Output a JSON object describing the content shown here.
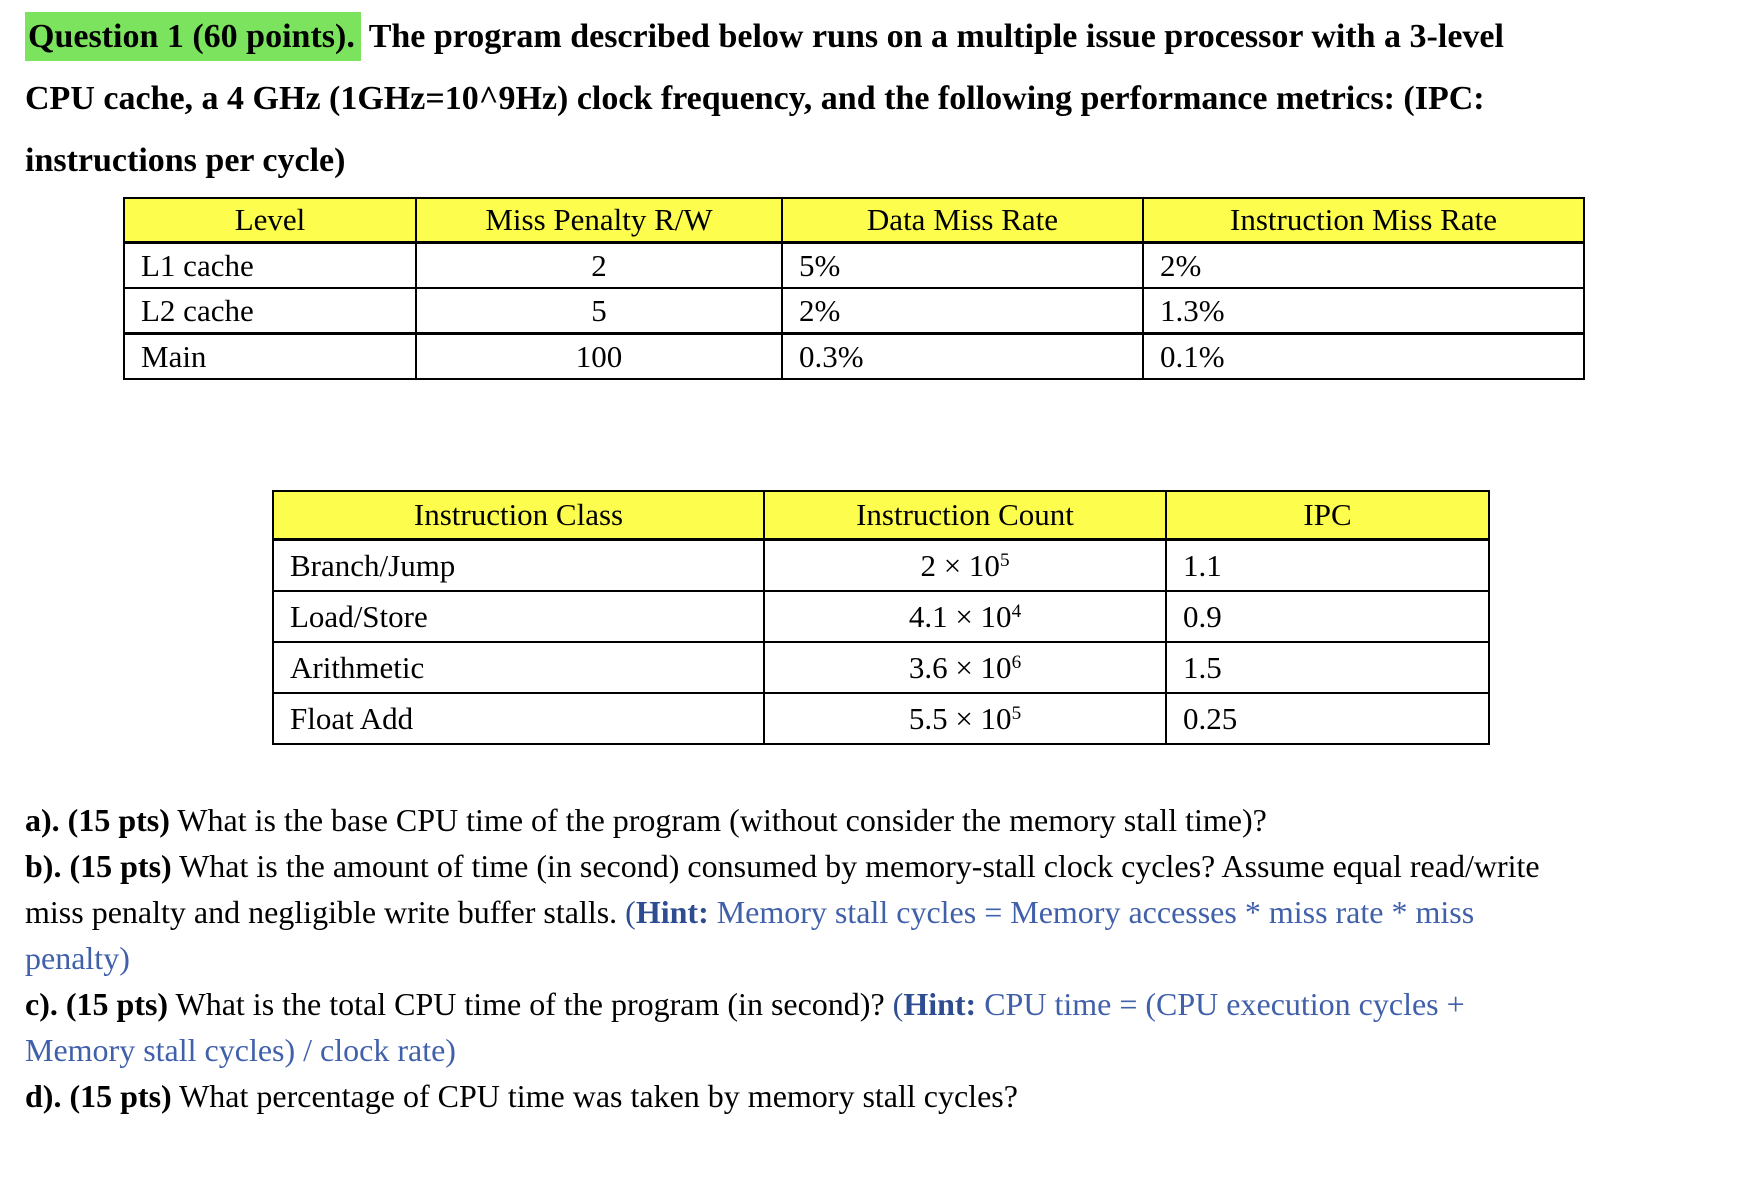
{
  "intro": {
    "highlight": "Question 1 (60 points).",
    "text": " The program described below runs on a multiple issue processor with a 3-level CPU cache, a 4 GHz (1GHz=10^9Hz) clock frequency, and the following performance metrics: (IPC: instructions per cycle)"
  },
  "cache_table": {
    "headers": [
      "Level",
      "Miss Penalty R/W",
      "Data Miss Rate",
      "Instruction Miss Rate"
    ],
    "rows": [
      {
        "level": "L1 cache",
        "penalty": "2",
        "data_miss": "5%",
        "instr_miss": "2%"
      },
      {
        "level": "L2 cache",
        "penalty": "5",
        "data_miss": "2%",
        "instr_miss": "1.3%"
      },
      {
        "level": "Main",
        "penalty": "100",
        "data_miss": "0.3%",
        "instr_miss": "0.1%"
      }
    ]
  },
  "instruction_table": {
    "headers": [
      "Instruction Class",
      "Instruction Count",
      "IPC"
    ],
    "rows": [
      {
        "class": "Branch/Jump",
        "count_base": "2 × 10",
        "count_exp": "5",
        "ipc": "1.1"
      },
      {
        "class": "Load/Store",
        "count_base": "4.1 × 10",
        "count_exp": "4",
        "ipc": "0.9"
      },
      {
        "class": "Arithmetic",
        "count_base": "3.6 × 10",
        "count_exp": "6",
        "ipc": "1.5"
      },
      {
        "class": "Float Add",
        "count_base": "5.5 × 10",
        "count_exp": "5",
        "ipc": "0.25"
      }
    ]
  },
  "questions": [
    {
      "label": "a). (15 pts)",
      "text": " What is the base CPU time of the program (without consider the memory stall time)?"
    },
    {
      "label": "b). (15 pts)",
      "text": " What is the amount of time (in second) consumed by memory-stall clock cycles? Assume equal read/write miss penalty and negligible write buffer stalls. ",
      "hint_open": "(",
      "hint_label": "Hint:",
      "hint_text": " Memory stall cycles = Memory accesses * miss rate * miss penalty)"
    },
    {
      "label": "c). (15 pts)",
      "text": " What is the total CPU time of the program (in second)? ",
      "hint_open": "(",
      "hint_label": "Hint:",
      "hint_text": " CPU time = (CPU execution cycles + Memory stall cycles) / clock rate)"
    },
    {
      "label": "d). (15 pts)",
      "text": " What percentage of CPU time was taken by memory stall cycles?"
    }
  ],
  "colors": {
    "highlight_green": "#7CE35F",
    "header_yellow": "#FDFD4E",
    "hint_blue": "#4060AA",
    "hint_blue_bold": "#2D4D90",
    "text_black": "#000000"
  }
}
